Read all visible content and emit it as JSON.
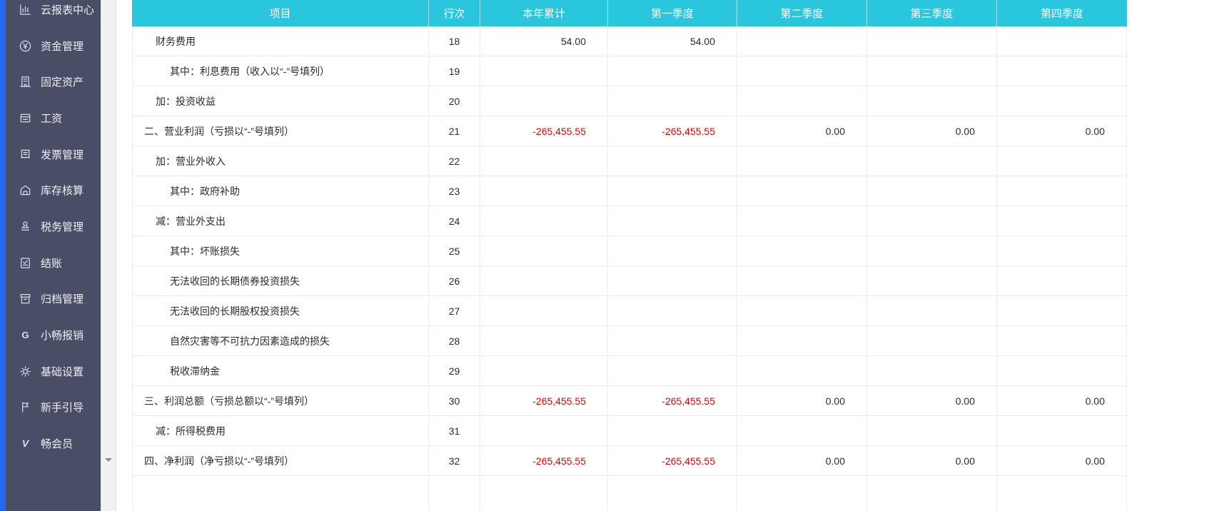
{
  "colors": {
    "header_cyan": "#29c6dd",
    "sidebar_bg": "#4a4d66",
    "sidebar_text": "#edeff6",
    "edge_blue": "#2468f2",
    "negative_red": "#e60000"
  },
  "sidebar": {
    "items": [
      {
        "label": "云报表中心",
        "icon": "bar-chart"
      },
      {
        "label": "资金管理",
        "icon": "yuan-circle"
      },
      {
        "label": "固定资产",
        "icon": "building"
      },
      {
        "label": "工资",
        "icon": "salary-card"
      },
      {
        "label": "发票管理",
        "icon": "invoice"
      },
      {
        "label": "库存核算",
        "icon": "warehouse"
      },
      {
        "label": "税务管理",
        "icon": "tax-stamp"
      },
      {
        "label": "结账",
        "icon": "closing-doc"
      },
      {
        "label": "归档管理",
        "icon": "archive-box"
      },
      {
        "label": "小畅报销",
        "icon": "g-logo"
      },
      {
        "label": "基础设置",
        "icon": "gear"
      },
      {
        "label": "新手引导",
        "icon": "guide-flag"
      },
      {
        "label": "畅会员",
        "icon": "v-logo"
      }
    ],
    "scrollbar": {
      "down_arrow": true
    }
  },
  "table": {
    "columns": [
      "项目",
      "行次",
      "本年累计",
      "第一季度",
      "第二季度",
      "第三季度",
      "第四季度"
    ],
    "rows": [
      {
        "item": "财务费用",
        "indent": 1,
        "line": "18",
        "ytd": "54.00",
        "q1": "54.00",
        "q2": "",
        "q3": "",
        "q4": ""
      },
      {
        "item": "其中：利息费用（收入以“-”号填列）",
        "indent": 2,
        "line": "19",
        "ytd": "",
        "q1": "",
        "q2": "",
        "q3": "",
        "q4": ""
      },
      {
        "item": "加：投资收益",
        "indent": 1,
        "line": "20",
        "ytd": "",
        "q1": "",
        "q2": "",
        "q3": "",
        "q4": ""
      },
      {
        "item": "二、营业利润（亏损以“-”号填列）",
        "indent": 0,
        "line": "21",
        "ytd": "-265,455.55",
        "q1": "-265,455.55",
        "q2": "0.00",
        "q3": "0.00",
        "q4": "0.00"
      },
      {
        "item": "加：营业外收入",
        "indent": 1,
        "line": "22",
        "ytd": "",
        "q1": "",
        "q2": "",
        "q3": "",
        "q4": ""
      },
      {
        "item": "其中：政府补助",
        "indent": 2,
        "line": "23",
        "ytd": "",
        "q1": "",
        "q2": "",
        "q3": "",
        "q4": ""
      },
      {
        "item": "减：营业外支出",
        "indent": 1,
        "line": "24",
        "ytd": "",
        "q1": "",
        "q2": "",
        "q3": "",
        "q4": ""
      },
      {
        "item": "其中：坏账损失",
        "indent": 2,
        "line": "25",
        "ytd": "",
        "q1": "",
        "q2": "",
        "q3": "",
        "q4": ""
      },
      {
        "item": "无法收回的长期债券投资损失",
        "indent": 2,
        "line": "26",
        "ytd": "",
        "q1": "",
        "q2": "",
        "q3": "",
        "q4": ""
      },
      {
        "item": "无法收回的长期股权投资损失",
        "indent": 2,
        "line": "27",
        "ytd": "",
        "q1": "",
        "q2": "",
        "q3": "",
        "q4": ""
      },
      {
        "item": "自然灾害等不可抗力因素造成的损失",
        "indent": 2,
        "line": "28",
        "ytd": "",
        "q1": "",
        "q2": "",
        "q3": "",
        "q4": ""
      },
      {
        "item": "税收滞纳金",
        "indent": 2,
        "line": "29",
        "ytd": "",
        "q1": "",
        "q2": "",
        "q3": "",
        "q4": ""
      },
      {
        "item": "三、利润总额（亏损总额以“-”号填列）",
        "indent": 0,
        "line": "30",
        "ytd": "-265,455.55",
        "q1": "-265,455.55",
        "q2": "0.00",
        "q3": "0.00",
        "q4": "0.00"
      },
      {
        "item": "减：所得税费用",
        "indent": 1,
        "line": "31",
        "ytd": "",
        "q1": "",
        "q2": "",
        "q3": "",
        "q4": ""
      },
      {
        "item": "四、净利润（净亏损以“-”号填列）",
        "indent": 0,
        "line": "32",
        "ytd": "-265,455.55",
        "q1": "-265,455.55",
        "q2": "0.00",
        "q3": "0.00",
        "q4": "0.00"
      }
    ]
  }
}
